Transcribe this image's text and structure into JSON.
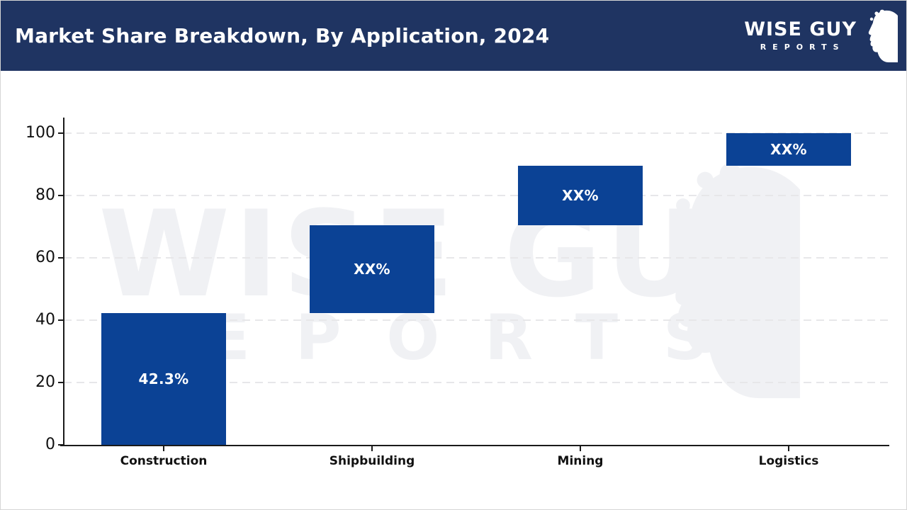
{
  "header": {
    "title": "Market Share Breakdown, By Application, 2024",
    "bg_color": "#1f3462",
    "logo": {
      "line1": "WISE GUY",
      "line2": "REPORTS",
      "face_icon": "dotted-head-profile"
    }
  },
  "watermark": {
    "line1": "WISE GUY",
    "line2": "REPORTS",
    "face_icon": "dotted-head-profile",
    "color": "#f0f1f4"
  },
  "chart_data": {
    "type": "bar",
    "subtype": "waterfall-stacked",
    "title": "Market Share Breakdown, By Application, 2024",
    "xlabel": "",
    "ylabel": "",
    "categories": [
      "Construction",
      "Shipbuilding",
      "Mining",
      "Logistics"
    ],
    "segments": [
      {
        "category": "Construction",
        "start": 0,
        "end": 42.3,
        "label": "42.3%"
      },
      {
        "category": "Shipbuilding",
        "start": 42.3,
        "end": 70.5,
        "label": "XX%"
      },
      {
        "category": "Mining",
        "start": 70.5,
        "end": 89.5,
        "label": "XX%"
      },
      {
        "category": "Logistics",
        "start": 89.5,
        "end": 100,
        "label": "XX%"
      }
    ],
    "yticks": [
      0,
      20,
      40,
      60,
      80,
      100
    ],
    "ylim": [
      0,
      105
    ],
    "grid": "horizontal-dashed",
    "legend": "none",
    "bar_color": "#0b4295",
    "bar_label_color": "#ffffff",
    "axis_color": "#1a1a1a",
    "gridline_color": "#e7e7e9"
  }
}
